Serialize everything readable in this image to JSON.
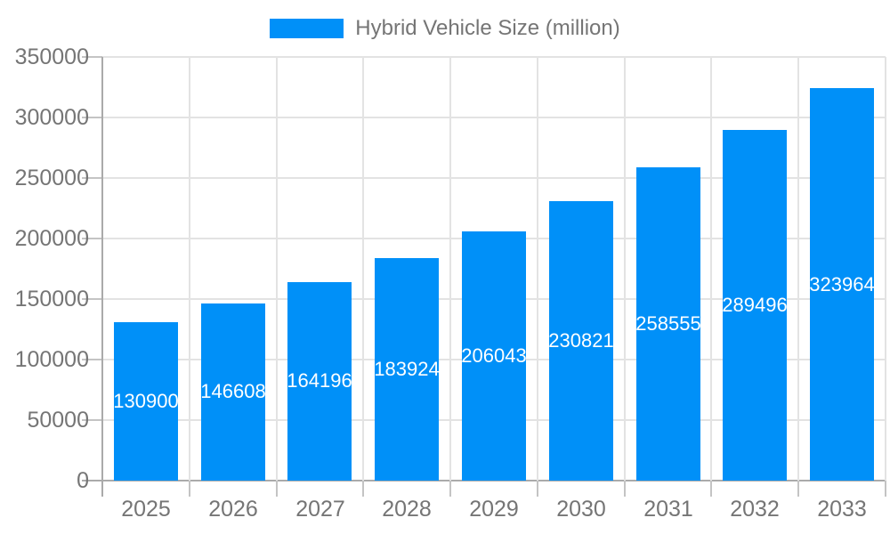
{
  "chart_data": {
    "type": "bar",
    "title": "",
    "legend": {
      "label": "Hybrid Vehicle Size (million)",
      "position": "top"
    },
    "categories": [
      "2025",
      "2026",
      "2027",
      "2028",
      "2029",
      "2030",
      "2031",
      "2032",
      "2033"
    ],
    "series": [
      {
        "name": "Hybrid Vehicle Size (million)",
        "values": [
          130900,
          146608,
          164196,
          183924,
          206043,
          230821,
          258555,
          289496,
          323964
        ]
      }
    ],
    "bar_labels": [
      "130900",
      "146608",
      "164196",
      "183924",
      "206043",
      "230821",
      "258555",
      "289496",
      "323964"
    ],
    "xlabel": "",
    "ylabel": "",
    "ylim": [
      0,
      350000
    ],
    "yticks": [
      0,
      50000,
      100000,
      150000,
      200000,
      250000,
      300000,
      350000
    ],
    "grid": true
  },
  "colors": {
    "bar": "#0090F8",
    "grid": "#e3e3e3",
    "axis": "#aaaaaa",
    "tick": "#c4c4c4",
    "text": "#757575",
    "bar_label_text": "#ffffff",
    "background": "#ffffff"
  }
}
